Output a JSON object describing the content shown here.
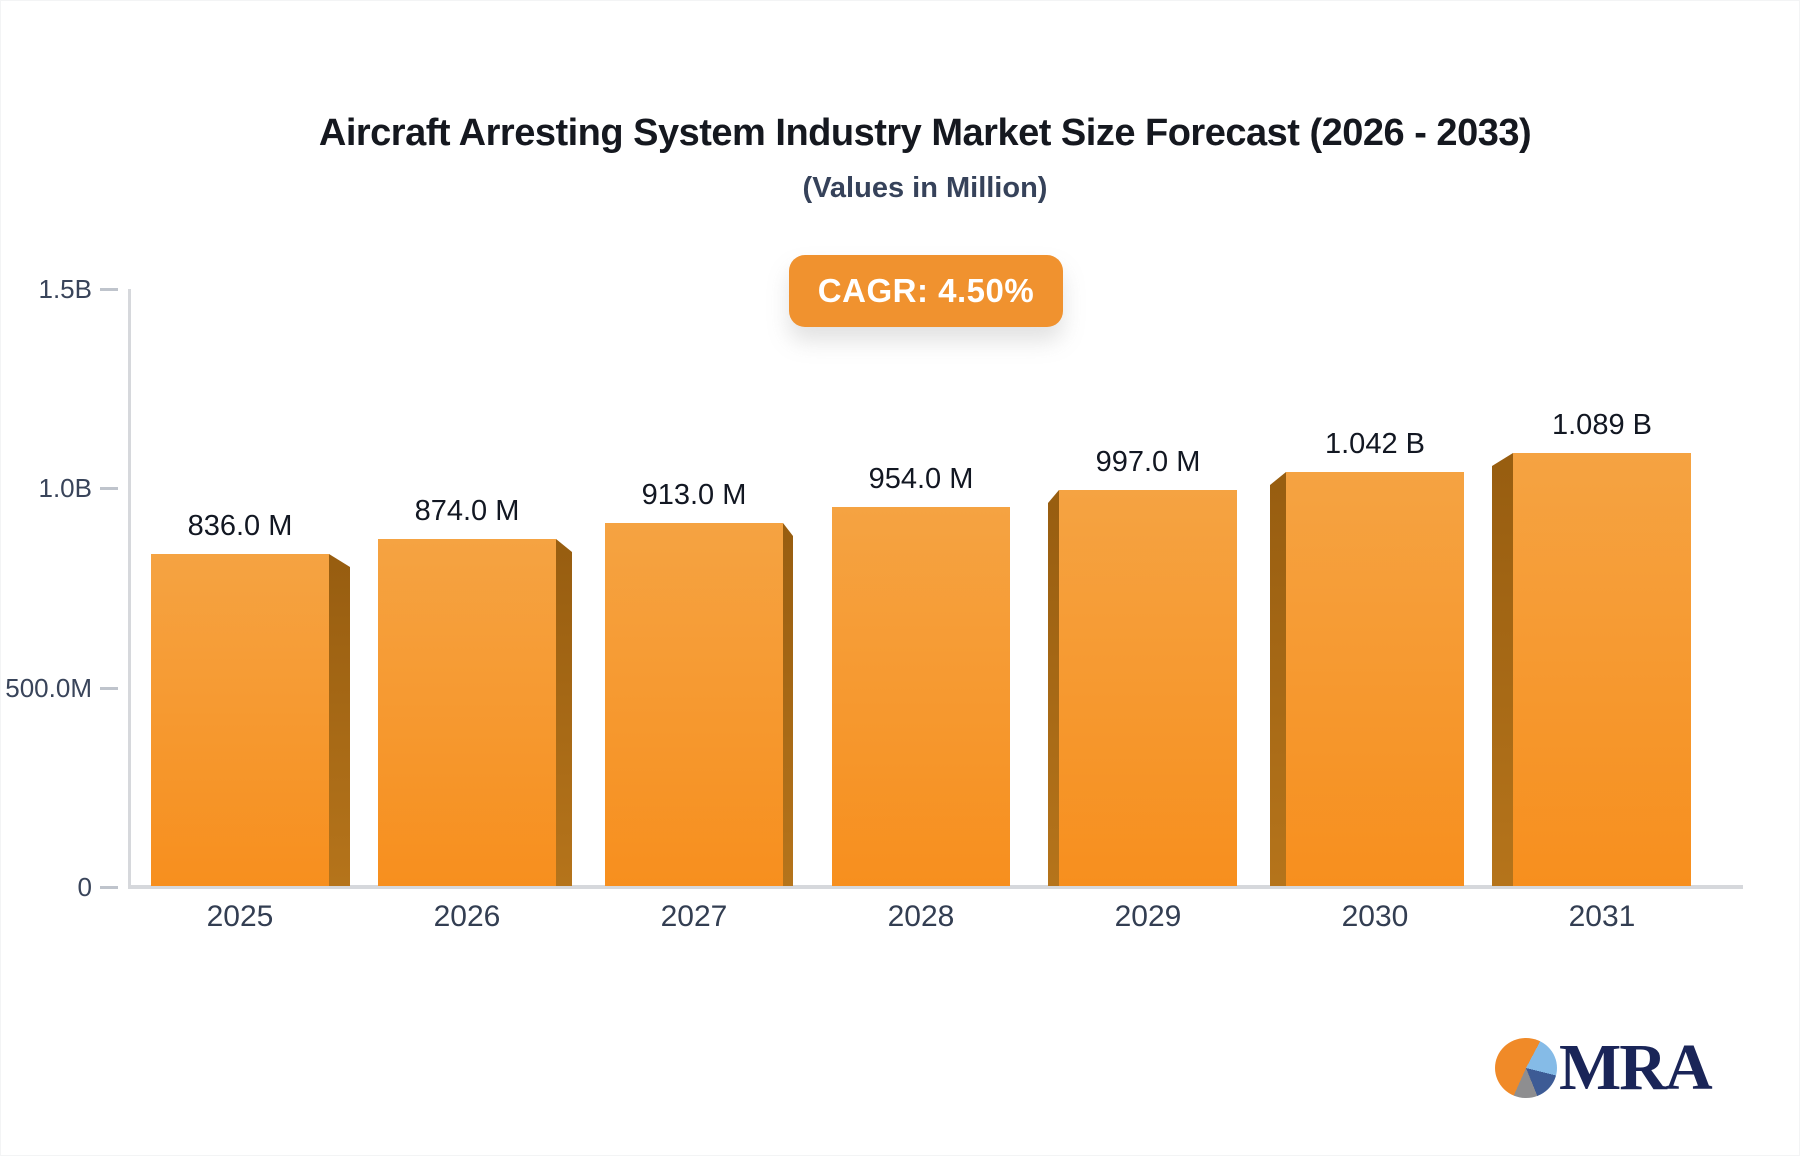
{
  "chart_data": {
    "type": "bar",
    "title": "Aircraft Arresting System Industry Market Size Forecast (2026 - 2033)",
    "subtitle": "(Values in Million)",
    "annotation": "CAGR: 4.50%",
    "categories": [
      "2025",
      "2026",
      "2027",
      "2028",
      "2029",
      "2030",
      "2031"
    ],
    "values_millions": [
      836,
      874,
      913,
      954,
      997,
      1042,
      1089
    ],
    "bar_labels": [
      "836.0 M",
      "874.0 M",
      "913.0 M",
      "954.0 M",
      "997.0 M",
      "1.042 B",
      "1.089 B"
    ],
    "xlabel": "",
    "ylabel": "",
    "y_axis": {
      "tick_labels": [
        "1.5B",
        "1.0B",
        "500.0M",
        "0"
      ],
      "tick_values_millions": [
        1500,
        1000,
        500,
        0
      ],
      "range_millions": [
        0,
        1500
      ]
    },
    "grid": false,
    "legend": "none",
    "style": "pseudo-3d-perspective-bars",
    "colors": {
      "bar_face_top": "#f5a342",
      "bar_face_bottom": "#f78f1e",
      "bar_side_top": "#975d10",
      "bar_side_bottom": "#b5741b",
      "badge_background": "#f0922f",
      "axis_line": "#d6d8dc"
    }
  },
  "logo": {
    "text": "MRA",
    "icon": "pie-chart-icon",
    "colors": {
      "orange": "#f08a28",
      "light_blue": "#85bbe7",
      "steel_blue": "#3d5b95",
      "gray": "#8e8e90",
      "text_navy": "#1a2558"
    }
  }
}
